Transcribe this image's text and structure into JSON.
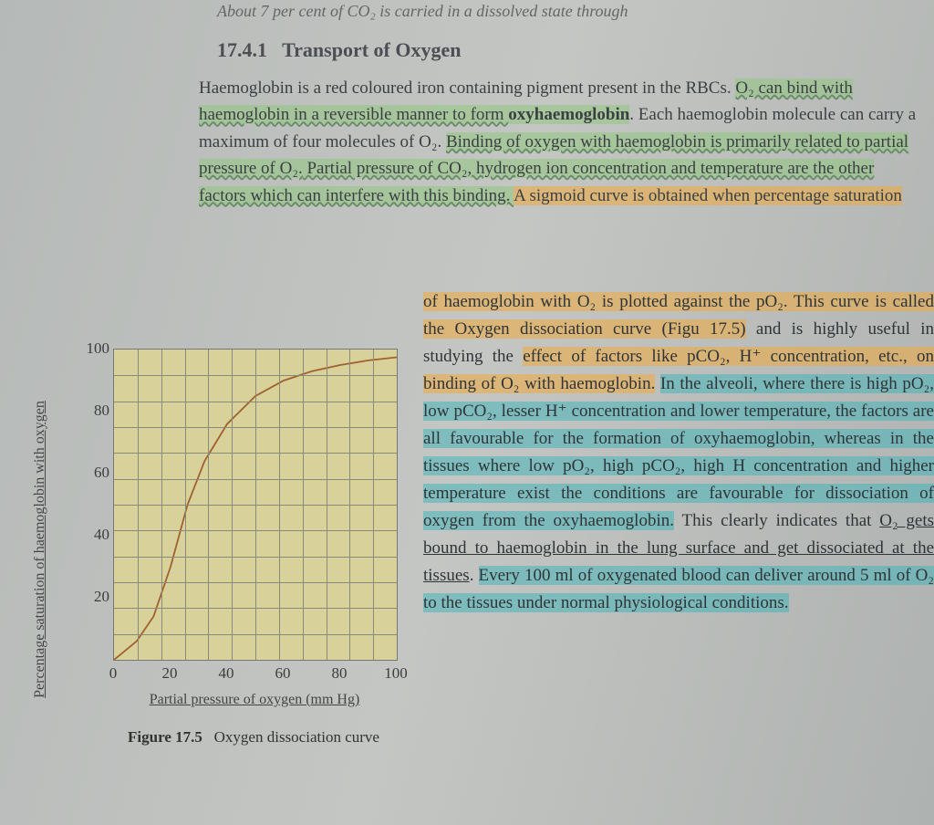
{
  "topline": "About 7 per cent of CO₂ is carried in a dissolved state through",
  "section": {
    "num": "17.4.1",
    "title": "Transport of Oxygen"
  },
  "para1_segments": [
    {
      "t": "Haemoglobin is a red coloured iron containing pigment present in the RBCs. ",
      "cls": ""
    },
    {
      "t": "O₂ can bind with haemoglobin in a reversible manner to form ",
      "cls": "hl-green wave"
    },
    {
      "t": "oxyhaemoglobin",
      "cls": "bold hl-green"
    },
    {
      "t": ". Each haemoglobin molecule can carry a maximum of four molecules of O₂. ",
      "cls": ""
    },
    {
      "t": "Binding of oxygen with haemoglobin is primarily related to partial pressure of O₂.",
      "cls": "hl-green wave"
    },
    {
      "t": " Partial pressure of CO₂, hydrogen ion concentration and temperature are the other factors which can interfere with this binding. ",
      "cls": "hl-green wave"
    },
    {
      "t": "A sigmoid curve is obtained when percentage saturation",
      "cls": "hl-orange"
    }
  ],
  "rightcol_segments": [
    {
      "t": "of haemoglobin with O₂ is plotted against the pO₂. This curve is called the Oxygen dissociation curve (Figu  17.5)",
      "cls": "hl-orange"
    },
    {
      "t": " and is highly useful in studying the ",
      "cls": ""
    },
    {
      "t": "effect of factors like pCO₂, H⁺ concentration, etc., on binding of O₂ with haemoglobin.",
      "cls": "hl-orange"
    },
    {
      "t": " ",
      "cls": ""
    },
    {
      "t": "In the alveoli, where there is high pO₂, low pCO₂, lesser H⁺ concentration and lower temperature, the factors are all favourable for the formation of oxyhaemoglobin, whereas in the tissues where low pO₂, high pCO₂, high H concentration and higher temperature exist the conditions are favourable for dissociation of oxygen from the oxyhaemoglobin.",
      "cls": "hl-teal"
    },
    {
      "t": " This clearly indicates that ",
      "cls": ""
    },
    {
      "t": "O₂ gets bound to haemoglobin in the lung surface and get dissociated at the tissues",
      "cls": "ul"
    },
    {
      "t": ". ",
      "cls": ""
    },
    {
      "t": "Every 100 ml of oxygenated blood can deliver around 5 ml of O₂ to the tissues under normal physiological conditions.",
      "cls": "hl-teal"
    }
  ],
  "chart": {
    "type": "line",
    "xlabel": "Partial pressure of oxygen (mm Hg)",
    "ylabel": "Percentage saturation of haemoglobin with oxygen",
    "caption_label": "Figure 17.5",
    "caption_text": "Oxygen dissociation curve",
    "xlim": [
      0,
      100
    ],
    "ylim": [
      0,
      100
    ],
    "xticks": [
      0,
      20,
      40,
      60,
      80,
      100
    ],
    "yticks": [
      20,
      40,
      60,
      80,
      100
    ],
    "grid_divisions": 12,
    "grid_color": "#8a8a7a",
    "bg_color": "#d8d29a",
    "curve_color": "#a06030",
    "curve_points": [
      [
        0,
        0
      ],
      [
        8,
        6
      ],
      [
        14,
        14
      ],
      [
        20,
        30
      ],
      [
        26,
        50
      ],
      [
        32,
        64
      ],
      [
        40,
        76
      ],
      [
        50,
        85
      ],
      [
        60,
        90
      ],
      [
        70,
        93
      ],
      [
        80,
        95
      ],
      [
        90,
        96.5
      ],
      [
        100,
        97.5
      ]
    ]
  }
}
